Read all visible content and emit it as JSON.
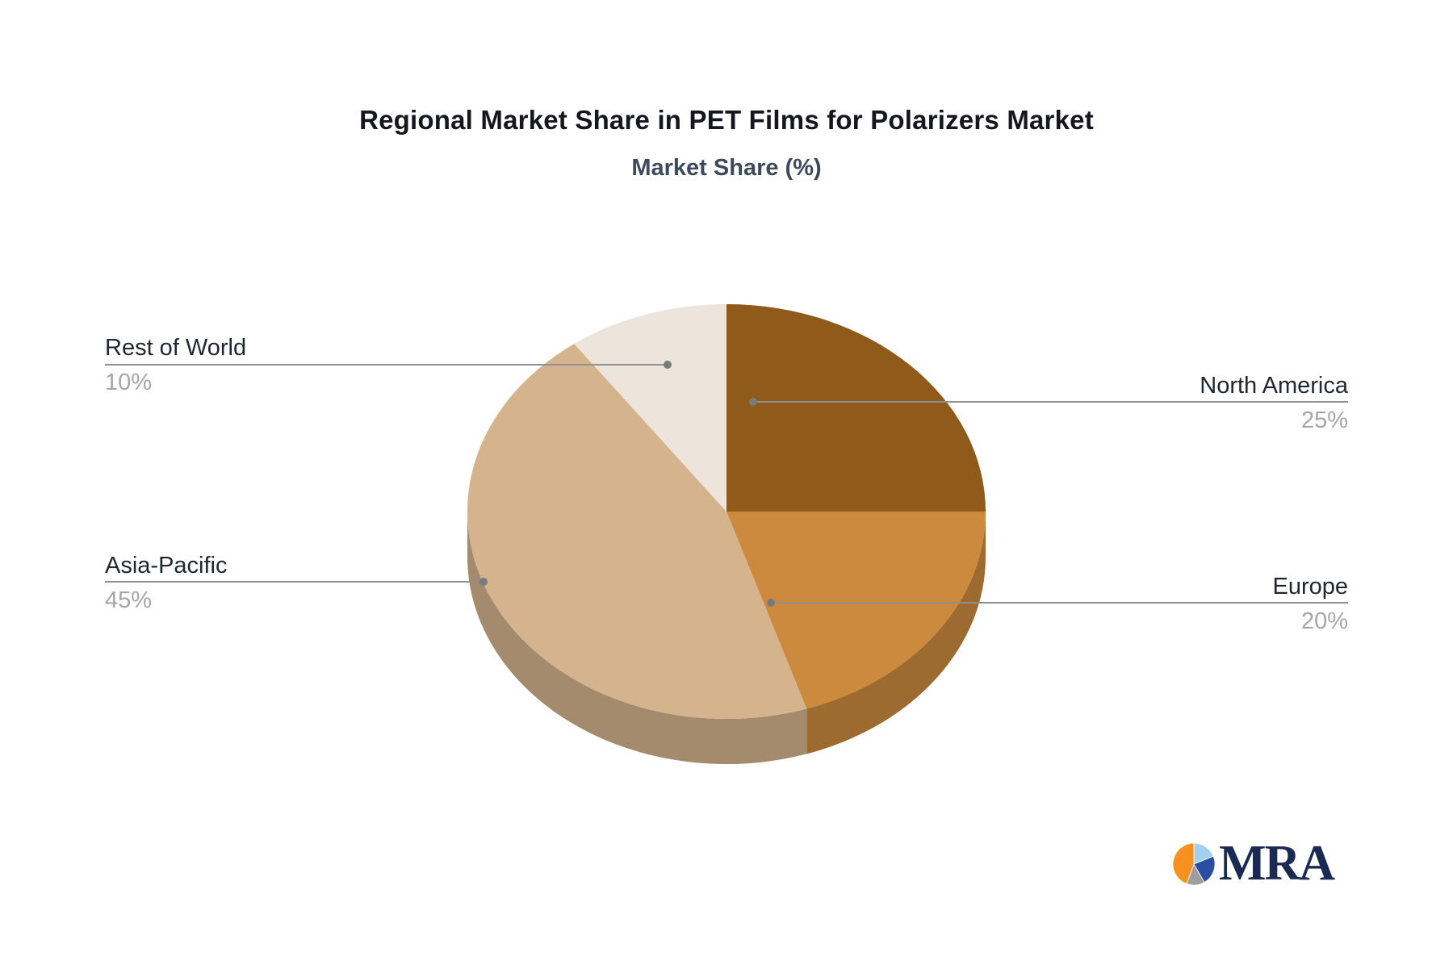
{
  "chart_data": {
    "type": "pie",
    "style_3d": true,
    "title": "Regional Market Share in PET Films for Polarizers Market",
    "subtitle": "Market Share (%)",
    "unit": "%",
    "start_angle_deg_clockwise_from_top": 0,
    "slices": [
      {
        "label": "North America",
        "value": 25,
        "pct_label": "25%",
        "color": "#8F5A1A",
        "label_side": "right"
      },
      {
        "label": "Europe",
        "value": 20,
        "pct_label": "20%",
        "color": "#CC8A3E",
        "label_side": "right"
      },
      {
        "label": "Asia-Pacific",
        "value": 45,
        "pct_label": "45%",
        "color": "#D5B48D",
        "label_side": "left"
      },
      {
        "label": "Rest of World",
        "value": 10,
        "pct_label": "10%",
        "color": "#EDE4DB",
        "label_side": "left"
      }
    ],
    "legend": "none",
    "labels_connected_by_leader_lines": true
  },
  "style": {
    "background": "#ffffff",
    "title_color": "#16161f",
    "subtitle_color": "#3D4A5C",
    "label_name_color": "#1f2733",
    "label_pct_color": "#a6a6a6",
    "leader_line_color": "#8f8f8f",
    "leader_dot_color": "#7a7a7a",
    "side_shade_factor": 0.77
  },
  "logo": {
    "text": "MRA",
    "text_color": "#1B2A52",
    "pie_segments": [
      {
        "name": "light-blue",
        "color": "#A3D1ED",
        "deg": 68
      },
      {
        "name": "dark-blue",
        "color": "#2A4FA2",
        "deg": 82
      },
      {
        "name": "gray",
        "color": "#9E9E9E",
        "deg": 50
      },
      {
        "name": "orange",
        "color": "#F5921F",
        "deg": 160
      }
    ]
  }
}
